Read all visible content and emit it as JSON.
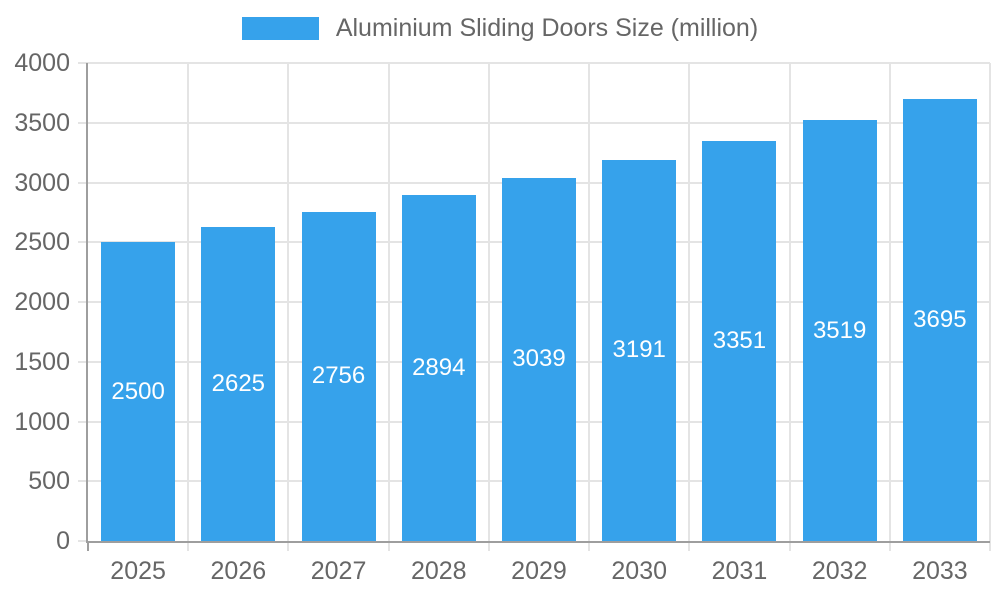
{
  "chart_data": {
    "type": "bar",
    "title": "Aluminium Sliding Doors Size (million)",
    "legend_position": "top",
    "categories": [
      "2025",
      "2026",
      "2027",
      "2028",
      "2029",
      "2030",
      "2031",
      "2032",
      "2033"
    ],
    "series": [
      {
        "name": "Aluminium Sliding Doors Size (million)",
        "values": [
          2500,
          2625,
          2756,
          2894,
          3039,
          3191,
          3351,
          3519,
          3695
        ]
      }
    ],
    "value_labels_shown": true,
    "xlabel": "",
    "ylabel": "",
    "ylim": [
      0,
      4000
    ],
    "yticks": [
      0,
      500,
      1000,
      1500,
      2000,
      2500,
      3000,
      3500,
      4000
    ],
    "grid": true,
    "colors": {
      "bar": "#36A2EB",
      "value_label_text": "#ffffff",
      "axis_text": "#666666",
      "gridline": "#e4e4e4",
      "axis_line": "#9e9e9e",
      "background": "#ffffff"
    }
  }
}
